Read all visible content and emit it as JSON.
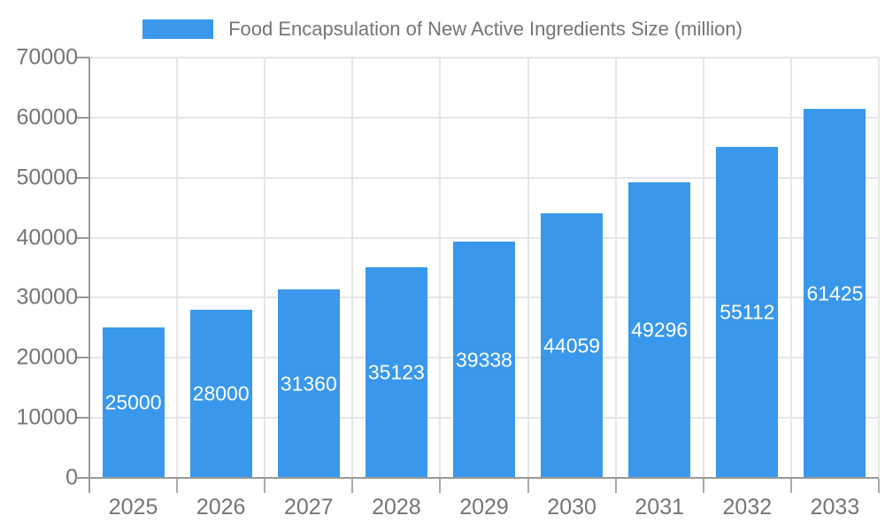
{
  "chart_data": {
    "type": "bar",
    "title": "Food Encapsulation of New Active Ingredients Size (million)",
    "categories": [
      "2025",
      "2026",
      "2027",
      "2028",
      "2029",
      "2030",
      "2031",
      "2032",
      "2033"
    ],
    "values": [
      25000,
      28000,
      31360,
      35123,
      39338,
      44059,
      49296,
      55112,
      61425
    ],
    "xlabel": "",
    "ylabel": "",
    "ylim": [
      0,
      70000
    ],
    "y_ticks": [
      0,
      10000,
      20000,
      30000,
      40000,
      50000,
      60000,
      70000
    ],
    "grid": true,
    "legend_position": "top",
    "bar_color": "#3998ec",
    "bar_label_color": "#ffffff",
    "grid_color": "#e6e6e6",
    "axis_line_color": "#999999",
    "tick_color": "#aaaaaa",
    "text_color": "#757575"
  }
}
